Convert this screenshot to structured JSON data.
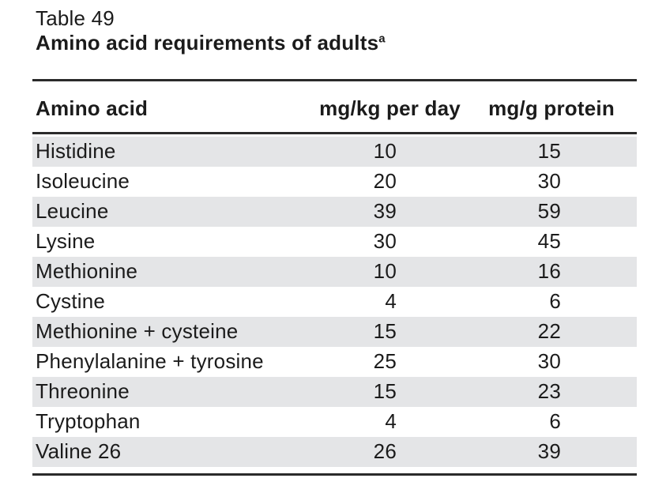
{
  "caption": {
    "table_number": "Table 49",
    "title": "Amino acid requirements of adults",
    "footnote_marker": "a"
  },
  "table": {
    "columns": [
      "Amino acid",
      "mg/kg per day",
      "mg/g protein"
    ],
    "rows": [
      {
        "amino_acid": "Histidine",
        "mg_per_kg_per_day": "10",
        "mg_per_g_protein": "15"
      },
      {
        "amino_acid": "Isoleucine",
        "mg_per_kg_per_day": "20",
        "mg_per_g_protein": "30"
      },
      {
        "amino_acid": "Leucine",
        "mg_per_kg_per_day": "39",
        "mg_per_g_protein": "59"
      },
      {
        "amino_acid": "Lysine",
        "mg_per_kg_per_day": "30",
        "mg_per_g_protein": "45"
      },
      {
        "amino_acid": "Methionine",
        "mg_per_kg_per_day": "10",
        "mg_per_g_protein": "16"
      },
      {
        "amino_acid": "Cystine",
        "mg_per_kg_per_day": "4",
        "mg_per_g_protein": "6"
      },
      {
        "amino_acid": "Methionine + cysteine",
        "mg_per_kg_per_day": "15",
        "mg_per_g_protein": "22"
      },
      {
        "amino_acid": "Phenylalanine + tyrosine",
        "mg_per_kg_per_day": "25",
        "mg_per_g_protein": "30"
      },
      {
        "amino_acid": "Threonine",
        "mg_per_kg_per_day": "15",
        "mg_per_g_protein": "23"
      },
      {
        "amino_acid": "Tryptophan",
        "mg_per_kg_per_day": "4",
        "mg_per_g_protein": "6"
      },
      {
        "amino_acid": "Valine 26",
        "mg_per_kg_per_day": "26",
        "mg_per_g_protein": "39"
      }
    ],
    "colors": {
      "stripe": "#e4e5e7",
      "rule": "#2a2a2a",
      "text": "#1b1b1b",
      "background": "#ffffff"
    }
  }
}
